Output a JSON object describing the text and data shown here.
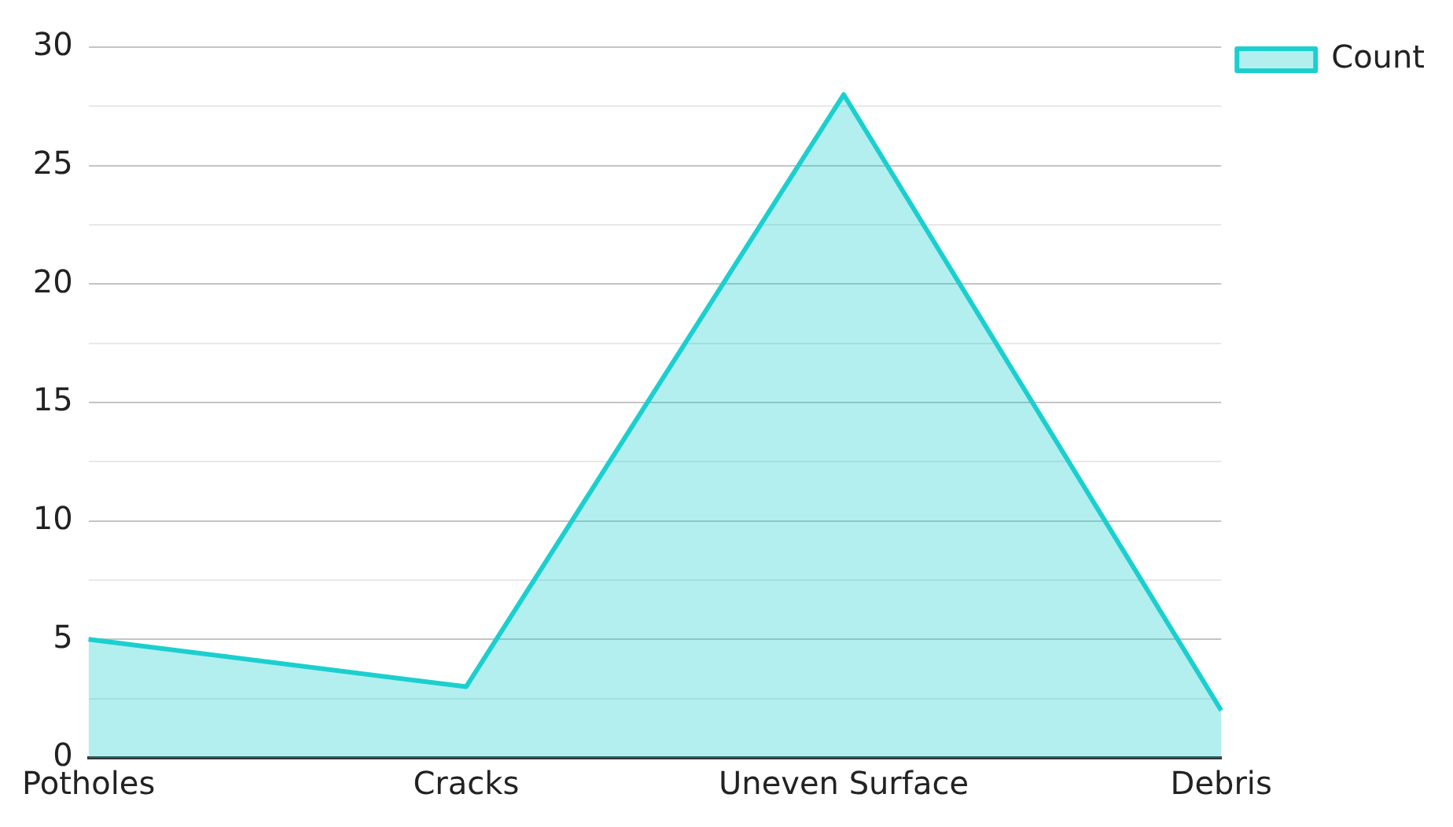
{
  "chart_data": {
    "type": "area",
    "categories": [
      "Potholes",
      "Cracks",
      "Uneven Surface",
      "Debris"
    ],
    "series": [
      {
        "name": "Count",
        "color": "#1ccfcf",
        "values": [
          5,
          3,
          28,
          2
        ]
      }
    ],
    "ylim": [
      0,
      30
    ],
    "yticks": [
      0,
      {
        "value": 2.5,
        "label": null
      },
      5,
      {
        "value": 7.5,
        "label": null
      },
      10,
      {
        "value": 12.5,
        "label": null
      },
      15,
      {
        "value": 17.5,
        "label": null
      },
      20,
      {
        "value": 22.5,
        "label": null
      },
      25,
      {
        "value": 27.5,
        "label": null
      },
      30
    ],
    "grid": "y",
    "legend": "top right",
    "marker": "none"
  }
}
